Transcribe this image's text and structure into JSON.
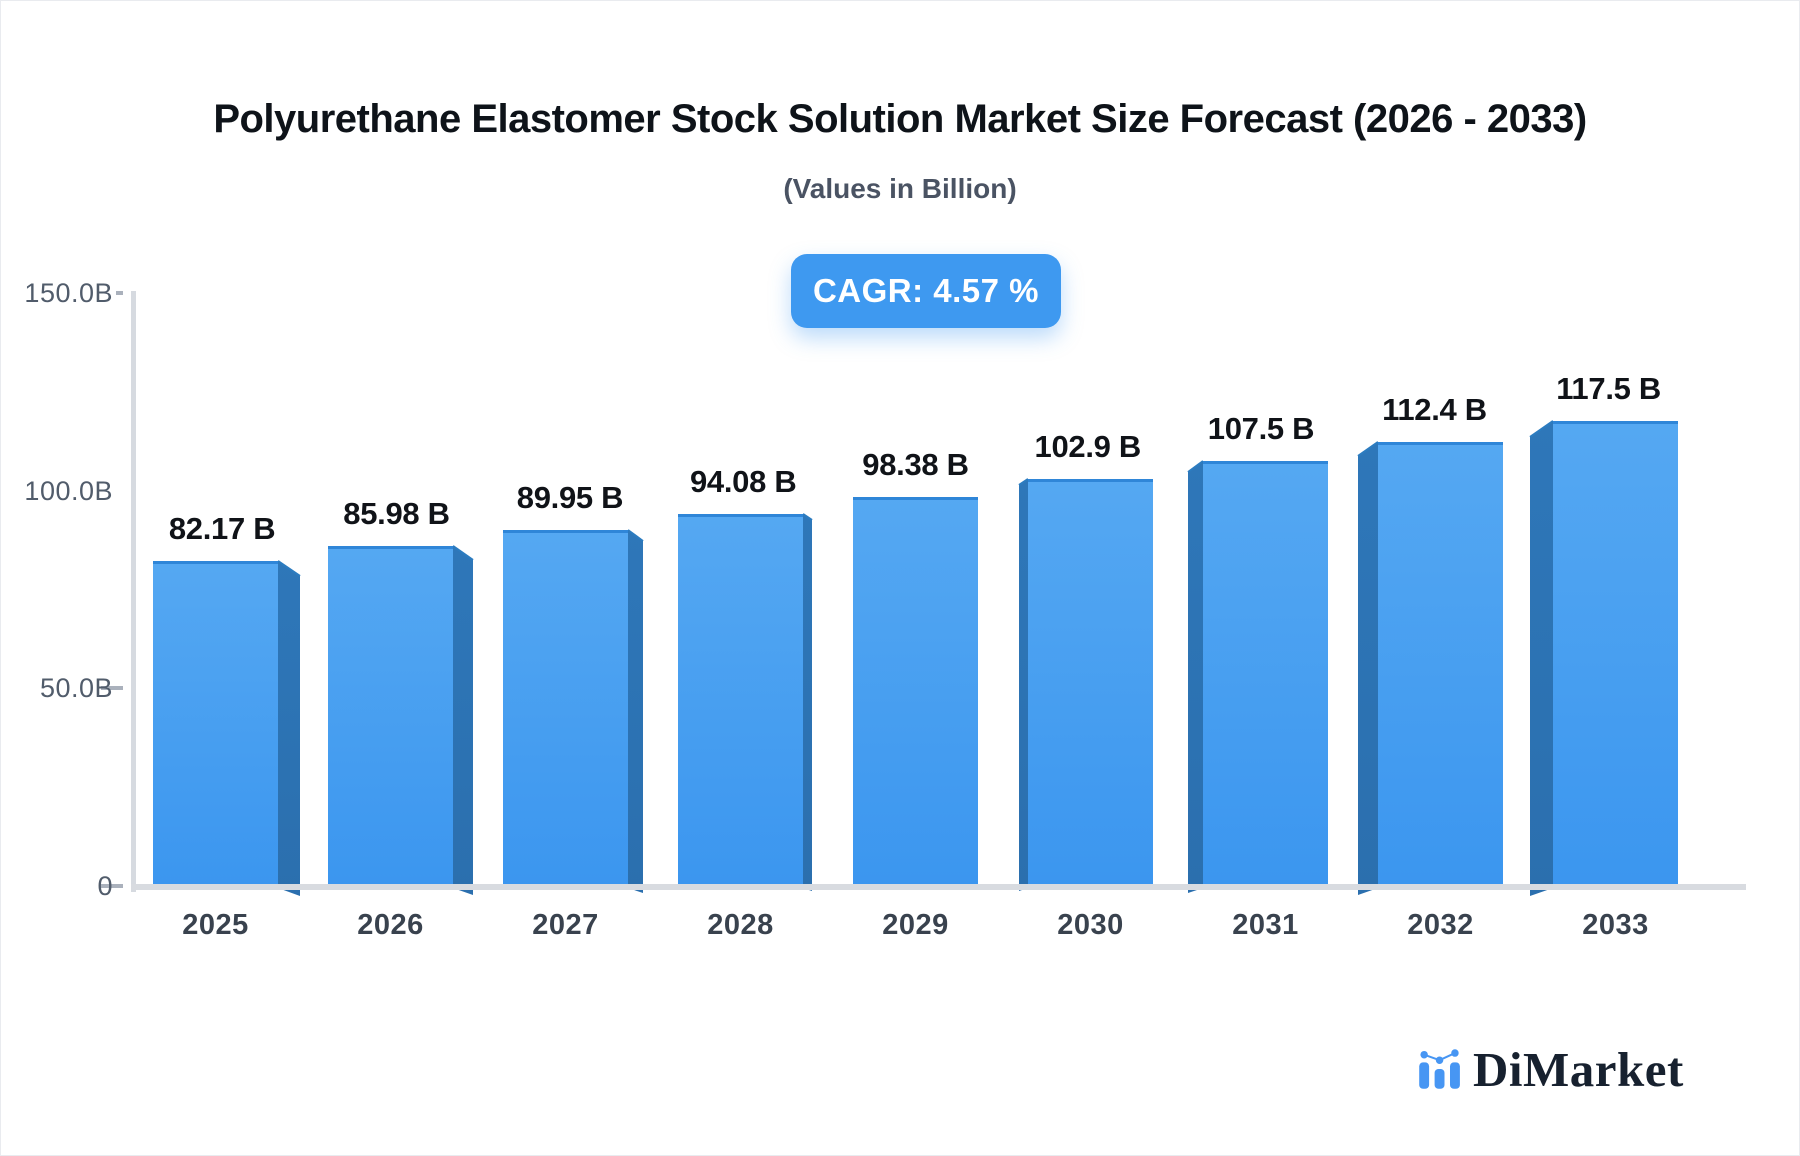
{
  "title": "Polyurethane Elastomer Stock Solution Market Size Forecast (2026 - 2033)",
  "subtitle": "(Values in Billion)",
  "badge": {
    "label": "CAGR: 4.57 %",
    "color": "#3e99f0"
  },
  "chart_data": {
    "type": "bar",
    "title": "Polyurethane Elastomer Stock Solution Market Size Forecast (2026 - 2033)",
    "subtitle": "(Values in Billion)",
    "categories": [
      "2025",
      "2026",
      "2027",
      "2028",
      "2029",
      "2030",
      "2031",
      "2032",
      "2033"
    ],
    "values": [
      82.17,
      85.98,
      89.95,
      94.08,
      98.38,
      102.9,
      107.5,
      112.4,
      117.5
    ],
    "value_labels": [
      "82.17 B",
      "85.98 B",
      "89.95 B",
      "94.08 B",
      "98.38 B",
      "102.9 B",
      "107.5 B",
      "112.4 B",
      "117.5 B"
    ],
    "xlabel": "",
    "ylabel": "",
    "ylim": [
      0,
      150
    ],
    "yticks": [
      {
        "value": 150,
        "label": "150.0B"
      },
      {
        "value": 100,
        "label": "100.0B"
      },
      {
        "value": 50,
        "label": "50.0B"
      },
      {
        "value": 0,
        "label": "0"
      }
    ],
    "grid": false,
    "legend": "none",
    "bar_face_top_color": "#55a8f2",
    "bar_face_bottom_color": "#3b96ef",
    "bar_top_edge_color": "#2f86d8",
    "bar_side_color": "#2e77b9",
    "axis_line_color": "#d6dae0",
    "baseline_color": "#d8dbe0"
  },
  "logo": {
    "text": "DiMarket",
    "icon": "bar-chart-trend-icon",
    "icon_color": "#4796f3",
    "text_color": "#17212f"
  }
}
